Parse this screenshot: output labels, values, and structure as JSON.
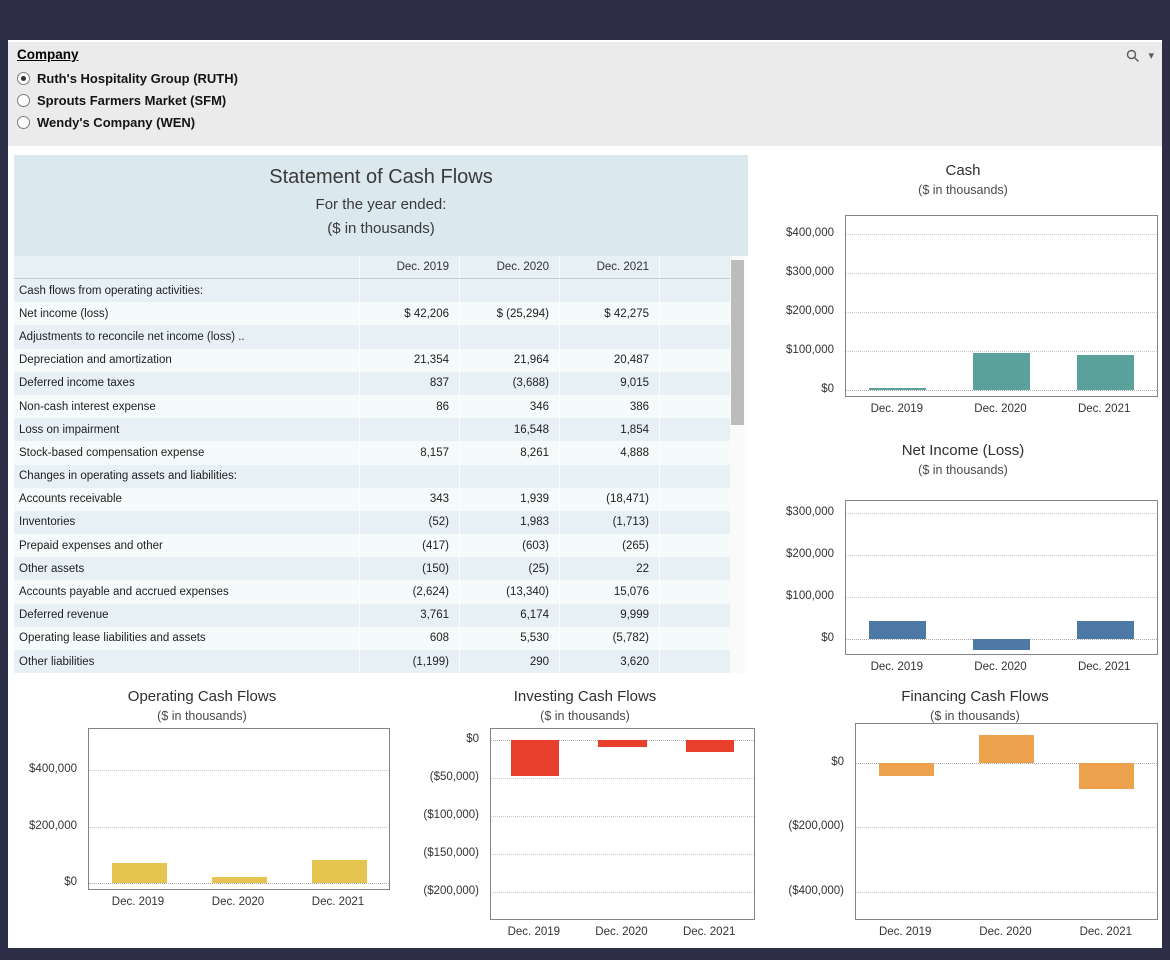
{
  "company_filter": {
    "title": "Company",
    "options": [
      {
        "label": "Ruth's Hospitality Group (RUTH)",
        "selected": true
      },
      {
        "label": "Sprouts Farmers Market (SFM)",
        "selected": false
      },
      {
        "label": "Wendy's Company (WEN)",
        "selected": false
      }
    ]
  },
  "statement": {
    "title": "Statement of Cash Flows",
    "subtitle1": "For the year ended:",
    "subtitle2": "($ in thousands)",
    "columns": [
      "Dec. 2019",
      "Dec. 2020",
      "Dec. 2021"
    ],
    "rows": [
      {
        "label": "Cash flows from operating activities:",
        "values": [
          "",
          "",
          ""
        ]
      },
      {
        "label": "Net income (loss)",
        "values": [
          "$ 42,206",
          "$ (25,294)",
          "$ 42,275"
        ]
      },
      {
        "label": "Adjustments to reconcile net income (loss) ..",
        "values": [
          "",
          "",
          ""
        ]
      },
      {
        "label": "Depreciation and amortization",
        "values": [
          "21,354",
          "21,964",
          "20,487"
        ]
      },
      {
        "label": "Deferred income taxes",
        "values": [
          "837",
          "(3,688)",
          "9,015"
        ]
      },
      {
        "label": "Non-cash interest expense",
        "values": [
          "86",
          "346",
          "386"
        ]
      },
      {
        "label": "Loss on impairment",
        "values": [
          "",
          "16,548",
          "1,854"
        ]
      },
      {
        "label": "Stock-based compensation expense",
        "values": [
          "8,157",
          "8,261",
          "4,888"
        ]
      },
      {
        "label": "Changes in operating assets and liabilities:",
        "values": [
          "",
          "",
          ""
        ]
      },
      {
        "label": "Accounts receivable",
        "values": [
          "343",
          "1,939",
          "(18,471)"
        ]
      },
      {
        "label": "Inventories",
        "values": [
          "(52)",
          "1,983",
          "(1,713)"
        ]
      },
      {
        "label": "Prepaid expenses and other",
        "values": [
          "(417)",
          "(603)",
          "(265)"
        ]
      },
      {
        "label": "Other assets",
        "values": [
          "(150)",
          "(25)",
          "22"
        ]
      },
      {
        "label": "Accounts payable and accrued expenses",
        "values": [
          "(2,624)",
          "(13,340)",
          "15,076"
        ]
      },
      {
        "label": "Deferred revenue",
        "values": [
          "3,761",
          "6,174",
          "9,999"
        ]
      },
      {
        "label": "Operating lease liabilities and assets",
        "values": [
          "608",
          "5,530",
          "(5,782)"
        ]
      },
      {
        "label": "Other liabilities",
        "values": [
          "(1,199)",
          "290",
          "3,620"
        ]
      }
    ]
  },
  "chart_data": [
    {
      "id": "cash",
      "type": "bar",
      "title": "Cash",
      "subtitle": "($ in thousands)",
      "categories": [
        "Dec. 2019",
        "Dec. 2020",
        "Dec. 2021"
      ],
      "values": [
        5500,
        95000,
        90000
      ],
      "color": "#5BA19B",
      "y_ticks": [
        400000,
        300000,
        200000,
        100000,
        0
      ],
      "ylim": [
        -15000,
        445000
      ],
      "grid": true,
      "legend": false
    },
    {
      "id": "net-income",
      "type": "bar",
      "title": "Net Income (Loss)",
      "subtitle": "($ in thousands)",
      "categories": [
        "Dec. 2019",
        "Dec. 2020",
        "Dec. 2021"
      ],
      "values": [
        42206,
        -25294,
        42275
      ],
      "color": "#4E79A7",
      "y_ticks": [
        300000,
        200000,
        100000,
        0
      ],
      "ylim": [
        -35000,
        328000
      ],
      "grid": true,
      "legend": false
    },
    {
      "id": "operating",
      "type": "bar",
      "title": "Operating Cash Flows",
      "subtitle": "($ in thousands)",
      "categories": [
        "Dec. 2019",
        "Dec. 2020",
        "Dec. 2021"
      ],
      "values": [
        72910,
        20085,
        81391
      ],
      "color": "#E5C450",
      "y_ticks": [
        400000,
        200000,
        0
      ],
      "ylim": [
        -21000,
        547000
      ],
      "grid": true,
      "legend": false
    },
    {
      "id": "investing",
      "type": "bar",
      "title": "Investing Cash Flows",
      "subtitle": "($ in thousands)",
      "categories": [
        "Dec. 2019",
        "Dec. 2020",
        "Dec. 2021"
      ],
      "values": [
        -47000,
        -9000,
        -15000
      ],
      "color": "#E73F2B",
      "y_ticks": [
        0,
        -50000,
        -100000,
        -150000,
        -200000
      ],
      "ylim": [
        -235000,
        15000
      ],
      "grid": true,
      "legend": false
    },
    {
      "id": "financing",
      "type": "bar",
      "title": "Financing Cash Flows",
      "subtitle": "($ in thousands)",
      "categories": [
        "Dec. 2019",
        "Dec. 2020",
        "Dec. 2021"
      ],
      "values": [
        -40000,
        85000,
        -80000
      ],
      "color": "#EDA24E",
      "y_ticks": [
        0,
        -200000,
        -400000
      ],
      "ylim": [
        -483000,
        120000
      ],
      "grid": true,
      "legend": false
    }
  ]
}
